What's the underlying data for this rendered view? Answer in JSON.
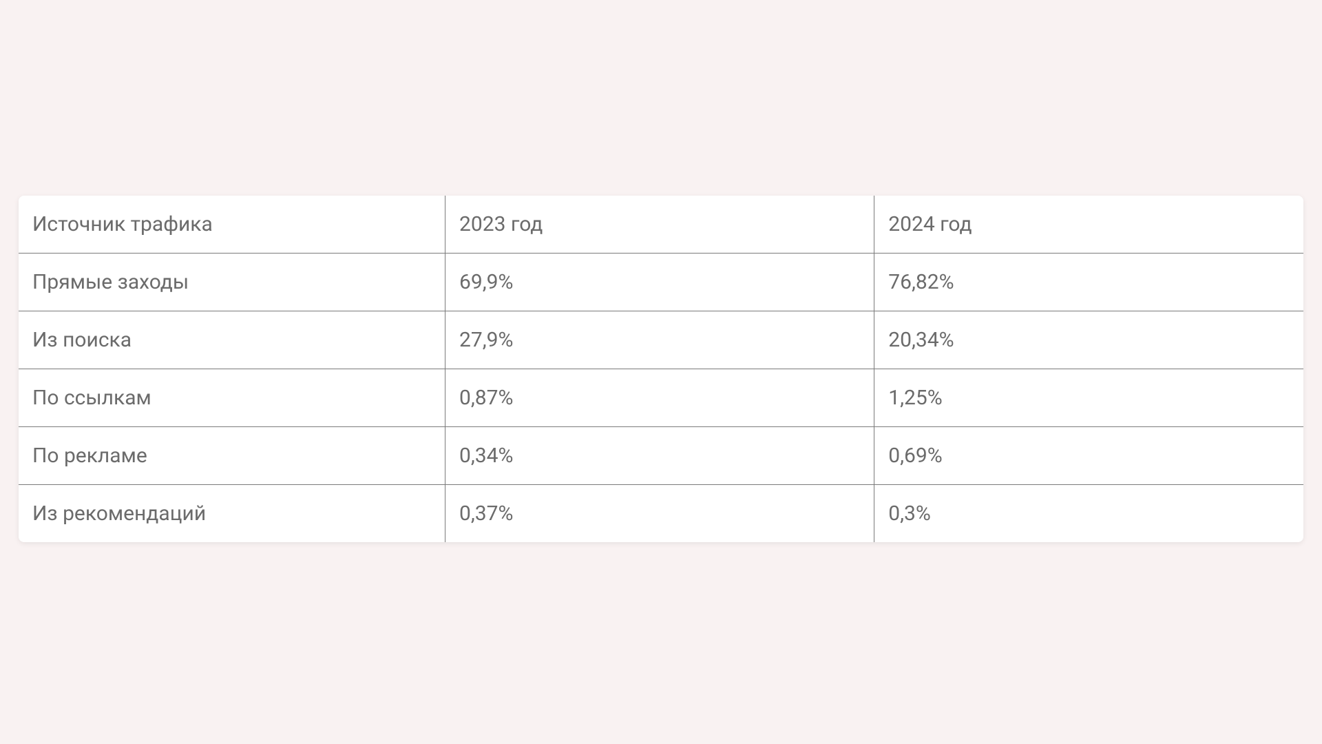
{
  "table": {
    "type": "table",
    "background_color": "#f9f2f2",
    "table_background": "#ffffff",
    "border_color": "#7a7a7a",
    "text_color": "#6b6b6b",
    "font_size": 30,
    "border_radius": 8,
    "columns": [
      {
        "header": "Источник трафика",
        "width_pct": 33.2,
        "align": "left"
      },
      {
        "header": "2023 год",
        "width_pct": 33.4,
        "align": "left"
      },
      {
        "header": "2024 год",
        "width_pct": 33.4,
        "align": "left"
      }
    ],
    "rows": [
      [
        "Прямые заходы",
        "69,9%",
        "76,82%"
      ],
      [
        "Из поиска",
        "27,9%",
        "20,34%"
      ],
      [
        "По ссылкам",
        "0,87%",
        "1,25%"
      ],
      [
        "По рекламе",
        "0,34%",
        "0,69%"
      ],
      [
        "Из рекомендаций",
        "0,37%",
        "0,3%"
      ]
    ]
  }
}
